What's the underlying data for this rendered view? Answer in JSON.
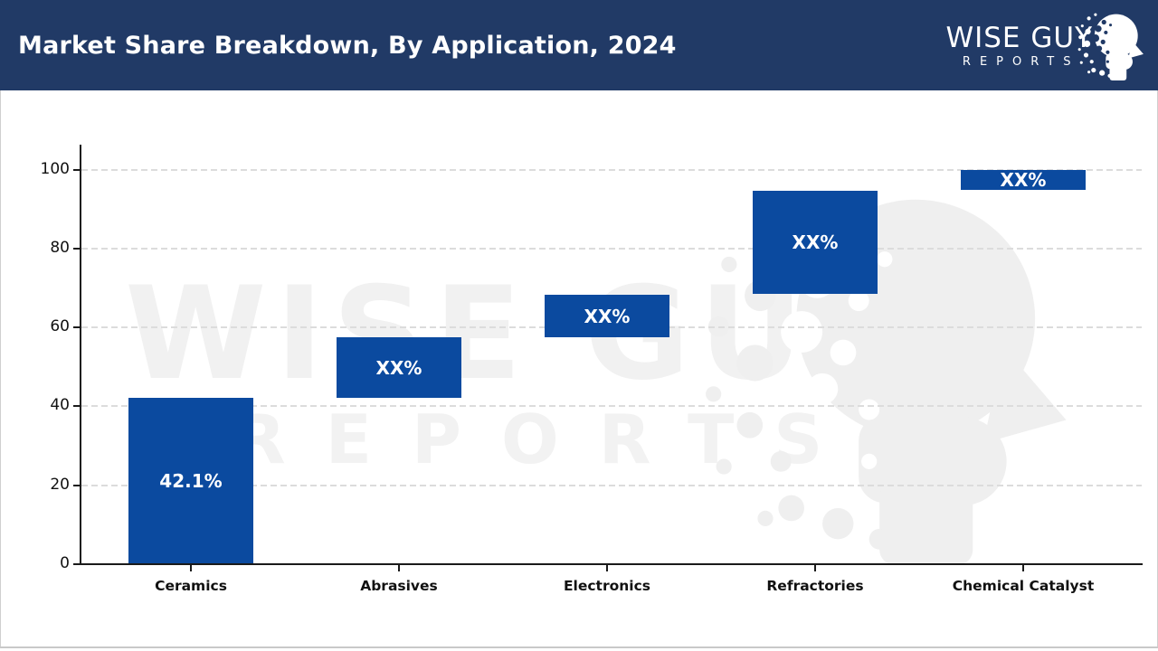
{
  "header": {
    "title": "Market Share Breakdown, By Application, 2024",
    "bg_color": "#213a66",
    "logo": {
      "name_line": "WISE GUY",
      "reports_line": "REPORTS"
    }
  },
  "watermark": {
    "name_line": "WISE GUY",
    "reports_line": "REPORTS"
  },
  "chart_data": {
    "type": "bar",
    "variant": "floating-waterfall",
    "categories": [
      "Ceramics",
      "Abrasives",
      "Electronics",
      "Refractories",
      "Chemical Catalyst"
    ],
    "segments": [
      {
        "category": "Ceramics",
        "start": 0,
        "end": 42.1,
        "label": "42.1%"
      },
      {
        "category": "Abrasives",
        "start": 42.1,
        "end": 57.5,
        "label": "XX%"
      },
      {
        "category": "Electronics",
        "start": 57.5,
        "end": 68.2,
        "label": "XX%"
      },
      {
        "category": "Refractories",
        "start": 68.5,
        "end": 94.7,
        "label": "XX%"
      },
      {
        "category": "Chemical Catalyst",
        "start": 94.9,
        "end": 100,
        "label": "XX%"
      }
    ],
    "ylim": [
      0,
      100
    ],
    "yticks": [
      0,
      20,
      40,
      60,
      80,
      100
    ],
    "xlabel": "",
    "ylabel": "",
    "bar_color": "#0b4a9f",
    "label_color": "#ffffff",
    "grid": {
      "axis": "y",
      "style": "dashed",
      "color": "#dcdcdc"
    },
    "legend": "none"
  }
}
